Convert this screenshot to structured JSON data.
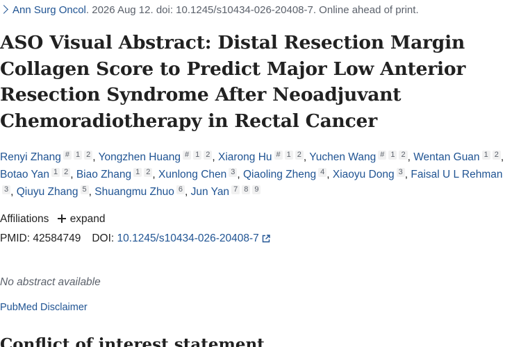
{
  "citation": {
    "journal": "Ann Surg Oncol",
    "details": ". 2026 Aug 12. doi: 10.1245/s10434-026-20408-7. Online ahead of print."
  },
  "title": "ASO Visual Abstract: Distal Resection Margin Collagen Score to Predict Major Low Anterior Resection Syndrome After Neoadjuvant Chemoradiotherapy in Rectal Cancer",
  "authors": [
    {
      "name": "Renyi Zhang",
      "affs": [
        "#",
        "1",
        "2"
      ]
    },
    {
      "name": "Yongzhen Huang",
      "affs": [
        "#",
        "1",
        "2"
      ]
    },
    {
      "name": "Xiarong Hu",
      "affs": [
        "#",
        "1",
        "2"
      ]
    },
    {
      "name": "Yuchen Wang",
      "affs": [
        "#",
        "1",
        "2"
      ]
    },
    {
      "name": "Wentan Guan",
      "affs": [
        "1",
        "2"
      ]
    },
    {
      "name": "Botao Yan",
      "affs": [
        "1",
        "2"
      ]
    },
    {
      "name": "Biao Zhang",
      "affs": [
        "1",
        "2"
      ]
    },
    {
      "name": "Xunlong Chen",
      "affs": [
        "3"
      ]
    },
    {
      "name": "Qiaoling Zheng",
      "affs": [
        "4"
      ]
    },
    {
      "name": "Xiaoyu Dong",
      "affs": [
        "3"
      ]
    },
    {
      "name": "Faisal U L Rehman",
      "affs": [
        "3"
      ]
    },
    {
      "name": "Qiuyu Zhang",
      "affs": [
        "5"
      ]
    },
    {
      "name": "Shuangmu Zhuo",
      "affs": [
        "6"
      ]
    },
    {
      "name": "Jun Yan",
      "affs": [
        "7",
        "8",
        "9"
      ]
    }
  ],
  "affiliations": {
    "label": "Affiliations",
    "expand_label": "expand"
  },
  "ids": {
    "pmid_label": "PMID:",
    "pmid": "42584749",
    "doi_label": "DOI:",
    "doi": "10.1245/s10434-026-20408-7"
  },
  "abstract": {
    "no_abstract": "No abstract available"
  },
  "disclaimer": "PubMed Disclaimer",
  "next_section": "Conflict of interest statement",
  "colors": {
    "link": "#205493",
    "muted": "#5b616b",
    "text": "#212121",
    "badge_bg": "#f1f1f1"
  },
  "icons": {
    "citation_chevron": "chevron-right-icon",
    "expand": "plus-icon",
    "doi_link": "external-link-icon"
  }
}
